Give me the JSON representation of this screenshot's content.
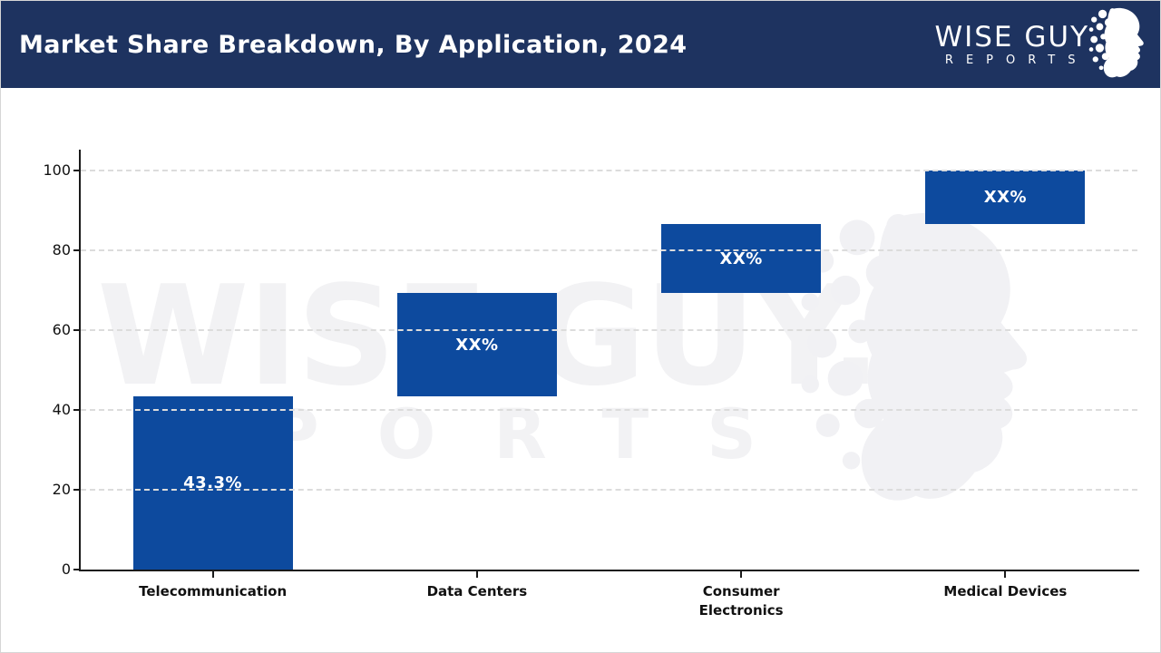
{
  "header": {
    "title": "Market Share Breakdown, By Application, 2024",
    "logo": {
      "line1": "WISE GUY",
      "line2": "REPORTS",
      "face_icon": "dotted-head-profile-icon"
    }
  },
  "watermark": {
    "line1": "WISE GUY.",
    "line2": "PORTS",
    "face_icon": "dotted-head-profile-icon"
  },
  "chart_data": {
    "type": "bar",
    "variant": "waterfall-breakdown",
    "title": "Market Share Breakdown, By Application, 2024",
    "categories": [
      "Telecommunication",
      "Data Centers",
      "Consumer Electronics",
      "Medical Devices"
    ],
    "segments": [
      {
        "category": "Telecommunication",
        "start": 0,
        "end": 43.3,
        "label": "43.3%"
      },
      {
        "category": "Data Centers",
        "start": 43.3,
        "end": 69.3,
        "label": "XX%"
      },
      {
        "category": "Consumer Electronics",
        "start": 69.3,
        "end": 86.6,
        "label": "XX%"
      },
      {
        "category": "Medical Devices",
        "start": 86.6,
        "end": 100,
        "label": "XX%"
      }
    ],
    "ylim": [
      0,
      100
    ],
    "yticks": [
      0,
      20,
      40,
      60,
      80,
      100
    ],
    "grid": "horizontal-dashed",
    "legend": "none",
    "bar_color": "#0d4a9e",
    "bar_label_color": "#ffffff",
    "axis_color": "#1a1a1a",
    "gridline_color": "#dcdcdc"
  },
  "colors": {
    "header_bg": "#1e3360",
    "watermark_gray": "#f2f2f4"
  }
}
